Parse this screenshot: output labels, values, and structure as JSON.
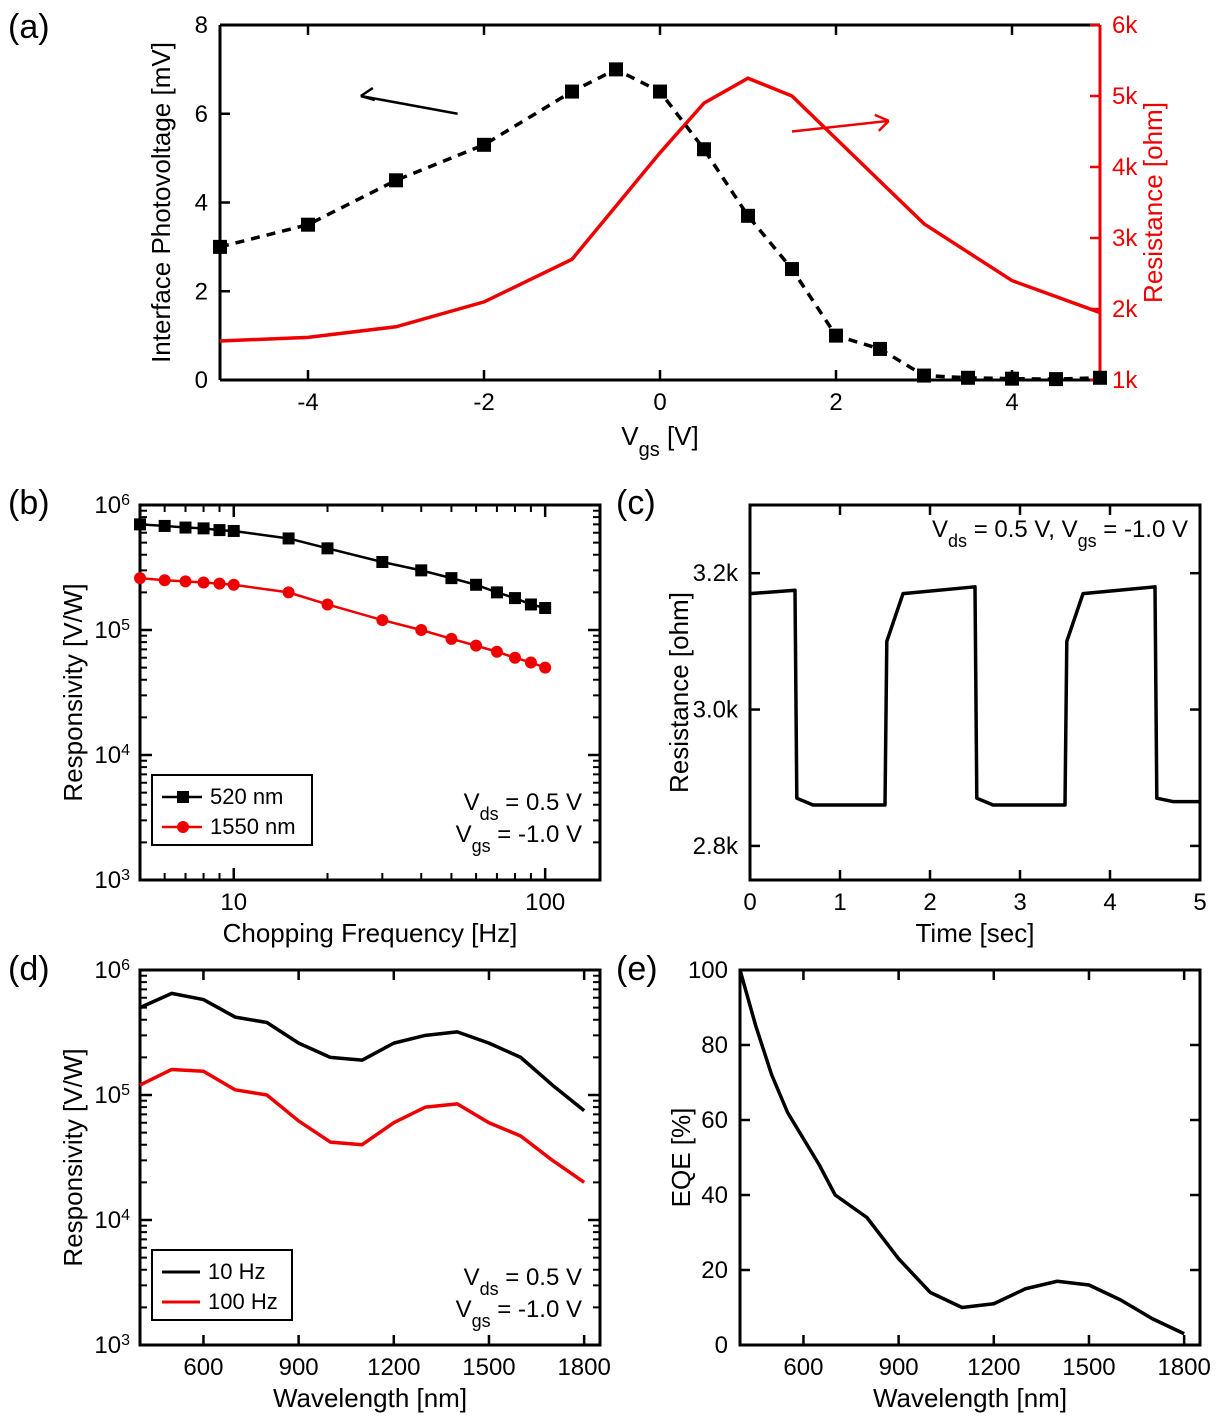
{
  "panel_labels": {
    "a": "(a)",
    "b": "(b)",
    "c": "(c)",
    "d": "(d)",
    "e": "(e)"
  },
  "colors": {
    "black": "#000000",
    "red": "#ef0000",
    "gray": "#888888"
  },
  "panel_a": {
    "type": "line+scatter dual-axis",
    "xlabel": "V",
    "xlabel_sub": "gs",
    "xlabel_unit": " [V]",
    "ylabel_left": "Interface Photovoltage [mV]",
    "ylabel_right": "Resistance [ohm]",
    "xlim": [
      -5,
      5
    ],
    "xtick_step": 2,
    "ylim_left": [
      0,
      8
    ],
    "ytick_left_step": 2,
    "ylim_right": [
      1000,
      6000
    ],
    "ytick_right_step": 1000,
    "ytick_right_format": "k",
    "series_photovoltage": {
      "color": "#000000",
      "marker": "square",
      "marker_size": 14,
      "line_width": 3.5,
      "x": [
        -5,
        -4,
        -3,
        -2,
        -1,
        -0.5,
        0,
        0.5,
        1,
        1.5,
        2,
        2.5,
        3,
        3.5,
        4,
        4.5,
        5
      ],
      "y": [
        3.0,
        3.5,
        4.5,
        5.3,
        6.5,
        7.0,
        6.5,
        5.2,
        3.7,
        2.5,
        1.0,
        0.7,
        0.1,
        0.05,
        0.03,
        0.02,
        0.05
      ]
    },
    "series_resistance": {
      "color": "#ef0000",
      "line_width": 3.5,
      "x": [
        -5,
        -4,
        -3,
        -2,
        -1,
        0,
        0.5,
        1,
        1.5,
        2,
        3,
        4,
        5
      ],
      "y": [
        1550,
        1600,
        1750,
        2100,
        2700,
        4200,
        4900,
        5250,
        5000,
        4400,
        3200,
        2400,
        1950
      ]
    },
    "arrows": {
      "left": true,
      "right": true
    }
  },
  "panel_b": {
    "type": "scatter+line loglog",
    "xlabel": "Chopping Frequency [Hz]",
    "ylabel": "Responsivity [V/W]",
    "xlim": [
      5,
      150
    ],
    "xscale": "log",
    "ylim": [
      1000,
      1000000
    ],
    "yscale": "log",
    "annotations": {
      "vds_label": "V",
      "vds_sub": "ds",
      "vds_txt": " = 0.5 V",
      "vgs_label": "V",
      "vgs_sub": "gs",
      "vgs_txt": " = -1.0 V"
    },
    "legend": [
      {
        "label": "520 nm",
        "color": "#000000",
        "marker": "square"
      },
      {
        "label": "1550 nm",
        "color": "#ef0000",
        "marker": "circle"
      }
    ],
    "series_520": {
      "color": "#000000",
      "marker": "square",
      "marker_size": 12,
      "line_width": 2.5,
      "x": [
        5,
        6,
        7,
        8,
        9,
        10,
        15,
        20,
        30,
        40,
        50,
        60,
        70,
        80,
        90,
        100
      ],
      "y": [
        700000,
        680000,
        660000,
        650000,
        630000,
        620000,
        540000,
        450000,
        350000,
        300000,
        260000,
        230000,
        200000,
        180000,
        160000,
        150000
      ]
    },
    "series_1550": {
      "color": "#ef0000",
      "marker": "circle",
      "marker_size": 12,
      "line_width": 2.5,
      "x": [
        5,
        6,
        7,
        8,
        9,
        10,
        15,
        20,
        30,
        40,
        50,
        60,
        70,
        80,
        90,
        100
      ],
      "y": [
        260000,
        250000,
        245000,
        240000,
        235000,
        230000,
        200000,
        160000,
        120000,
        100000,
        85000,
        75000,
        67000,
        60000,
        55000,
        50000
      ]
    }
  },
  "panel_c": {
    "type": "line",
    "xlabel": "Time [sec]",
    "ylabel": "Resistance [ohm]",
    "xlim": [
      0,
      5
    ],
    "xtick_step": 1,
    "ylim": [
      2750,
      3300
    ],
    "yticks": [
      2800,
      3000,
      3200
    ],
    "ytick_format": "k",
    "annotation": {
      "vds_label": "V",
      "vds_sub": "ds",
      "vds_txt": " = 0.5 V, ",
      "vgs_label": "V",
      "vgs_sub": "gs",
      "vgs_txt": " = -1.0 V"
    },
    "series": {
      "color": "#000000",
      "line_width": 3.5,
      "x": [
        0,
        0.5,
        0.52,
        0.7,
        1.5,
        1.52,
        1.7,
        2.5,
        2.52,
        2.7,
        3.5,
        3.52,
        3.7,
        4.5,
        4.52,
        4.7,
        5
      ],
      "y": [
        3170,
        3175,
        2870,
        2860,
        2860,
        3100,
        3170,
        3180,
        2870,
        2860,
        2860,
        3100,
        3170,
        3180,
        2870,
        2865,
        2865
      ]
    }
  },
  "panel_d": {
    "type": "line semilog-y",
    "xlabel": "Wavelength [nm]",
    "ylabel": "Responsivity [V/W]",
    "xlim": [
      400,
      1850
    ],
    "xticks": [
      600,
      900,
      1200,
      1500,
      1800
    ],
    "ylim": [
      1000,
      1000000
    ],
    "yscale": "log",
    "annotations": {
      "vds_label": "V",
      "vds_sub": "ds",
      "vds_txt": " = 0.5 V",
      "vgs_label": "V",
      "vgs_sub": "gs",
      "vgs_txt": " = -1.0 V"
    },
    "legend": [
      {
        "label": "10 Hz",
        "color": "#000000"
      },
      {
        "label": "100 Hz",
        "color": "#ef0000"
      }
    ],
    "series_10hz": {
      "color": "#000000",
      "line_width": 3.5,
      "x": [
        400,
        500,
        600,
        700,
        800,
        900,
        1000,
        1100,
        1200,
        1300,
        1400,
        1500,
        1600,
        1700,
        1800
      ],
      "y": [
        500000,
        650000,
        580000,
        420000,
        380000,
        260000,
        200000,
        190000,
        260000,
        300000,
        320000,
        260000,
        200000,
        120000,
        75000
      ]
    },
    "series_100hz": {
      "color": "#ef0000",
      "line_width": 3.5,
      "x": [
        400,
        500,
        600,
        700,
        800,
        900,
        1000,
        1100,
        1200,
        1300,
        1400,
        1500,
        1600,
        1700,
        1800
      ],
      "y": [
        120000,
        160000,
        155000,
        110000,
        100000,
        62000,
        42000,
        40000,
        60000,
        80000,
        85000,
        60000,
        47000,
        30000,
        20000
      ]
    }
  },
  "panel_e": {
    "type": "line",
    "xlabel": "Wavelength [nm]",
    "ylabel": "EQE [%]",
    "xlim": [
      400,
      1850
    ],
    "xticks": [
      600,
      900,
      1200,
      1500,
      1800
    ],
    "ylim": [
      0,
      100
    ],
    "ytick_step": 20,
    "series": {
      "color": "#000000",
      "line_width": 3.5,
      "x": [
        400,
        450,
        500,
        550,
        600,
        650,
        700,
        750,
        800,
        900,
        1000,
        1100,
        1200,
        1300,
        1400,
        1500,
        1600,
        1700,
        1800
      ],
      "y": [
        100,
        85,
        72,
        62,
        55,
        48,
        40,
        37,
        34,
        23,
        14,
        10,
        11,
        15,
        17,
        16,
        12,
        7,
        3
      ]
    }
  },
  "font_sizes": {
    "panel_label": 34,
    "axis_label": 26,
    "tick": 24,
    "legend": 22,
    "annotation": 24
  }
}
